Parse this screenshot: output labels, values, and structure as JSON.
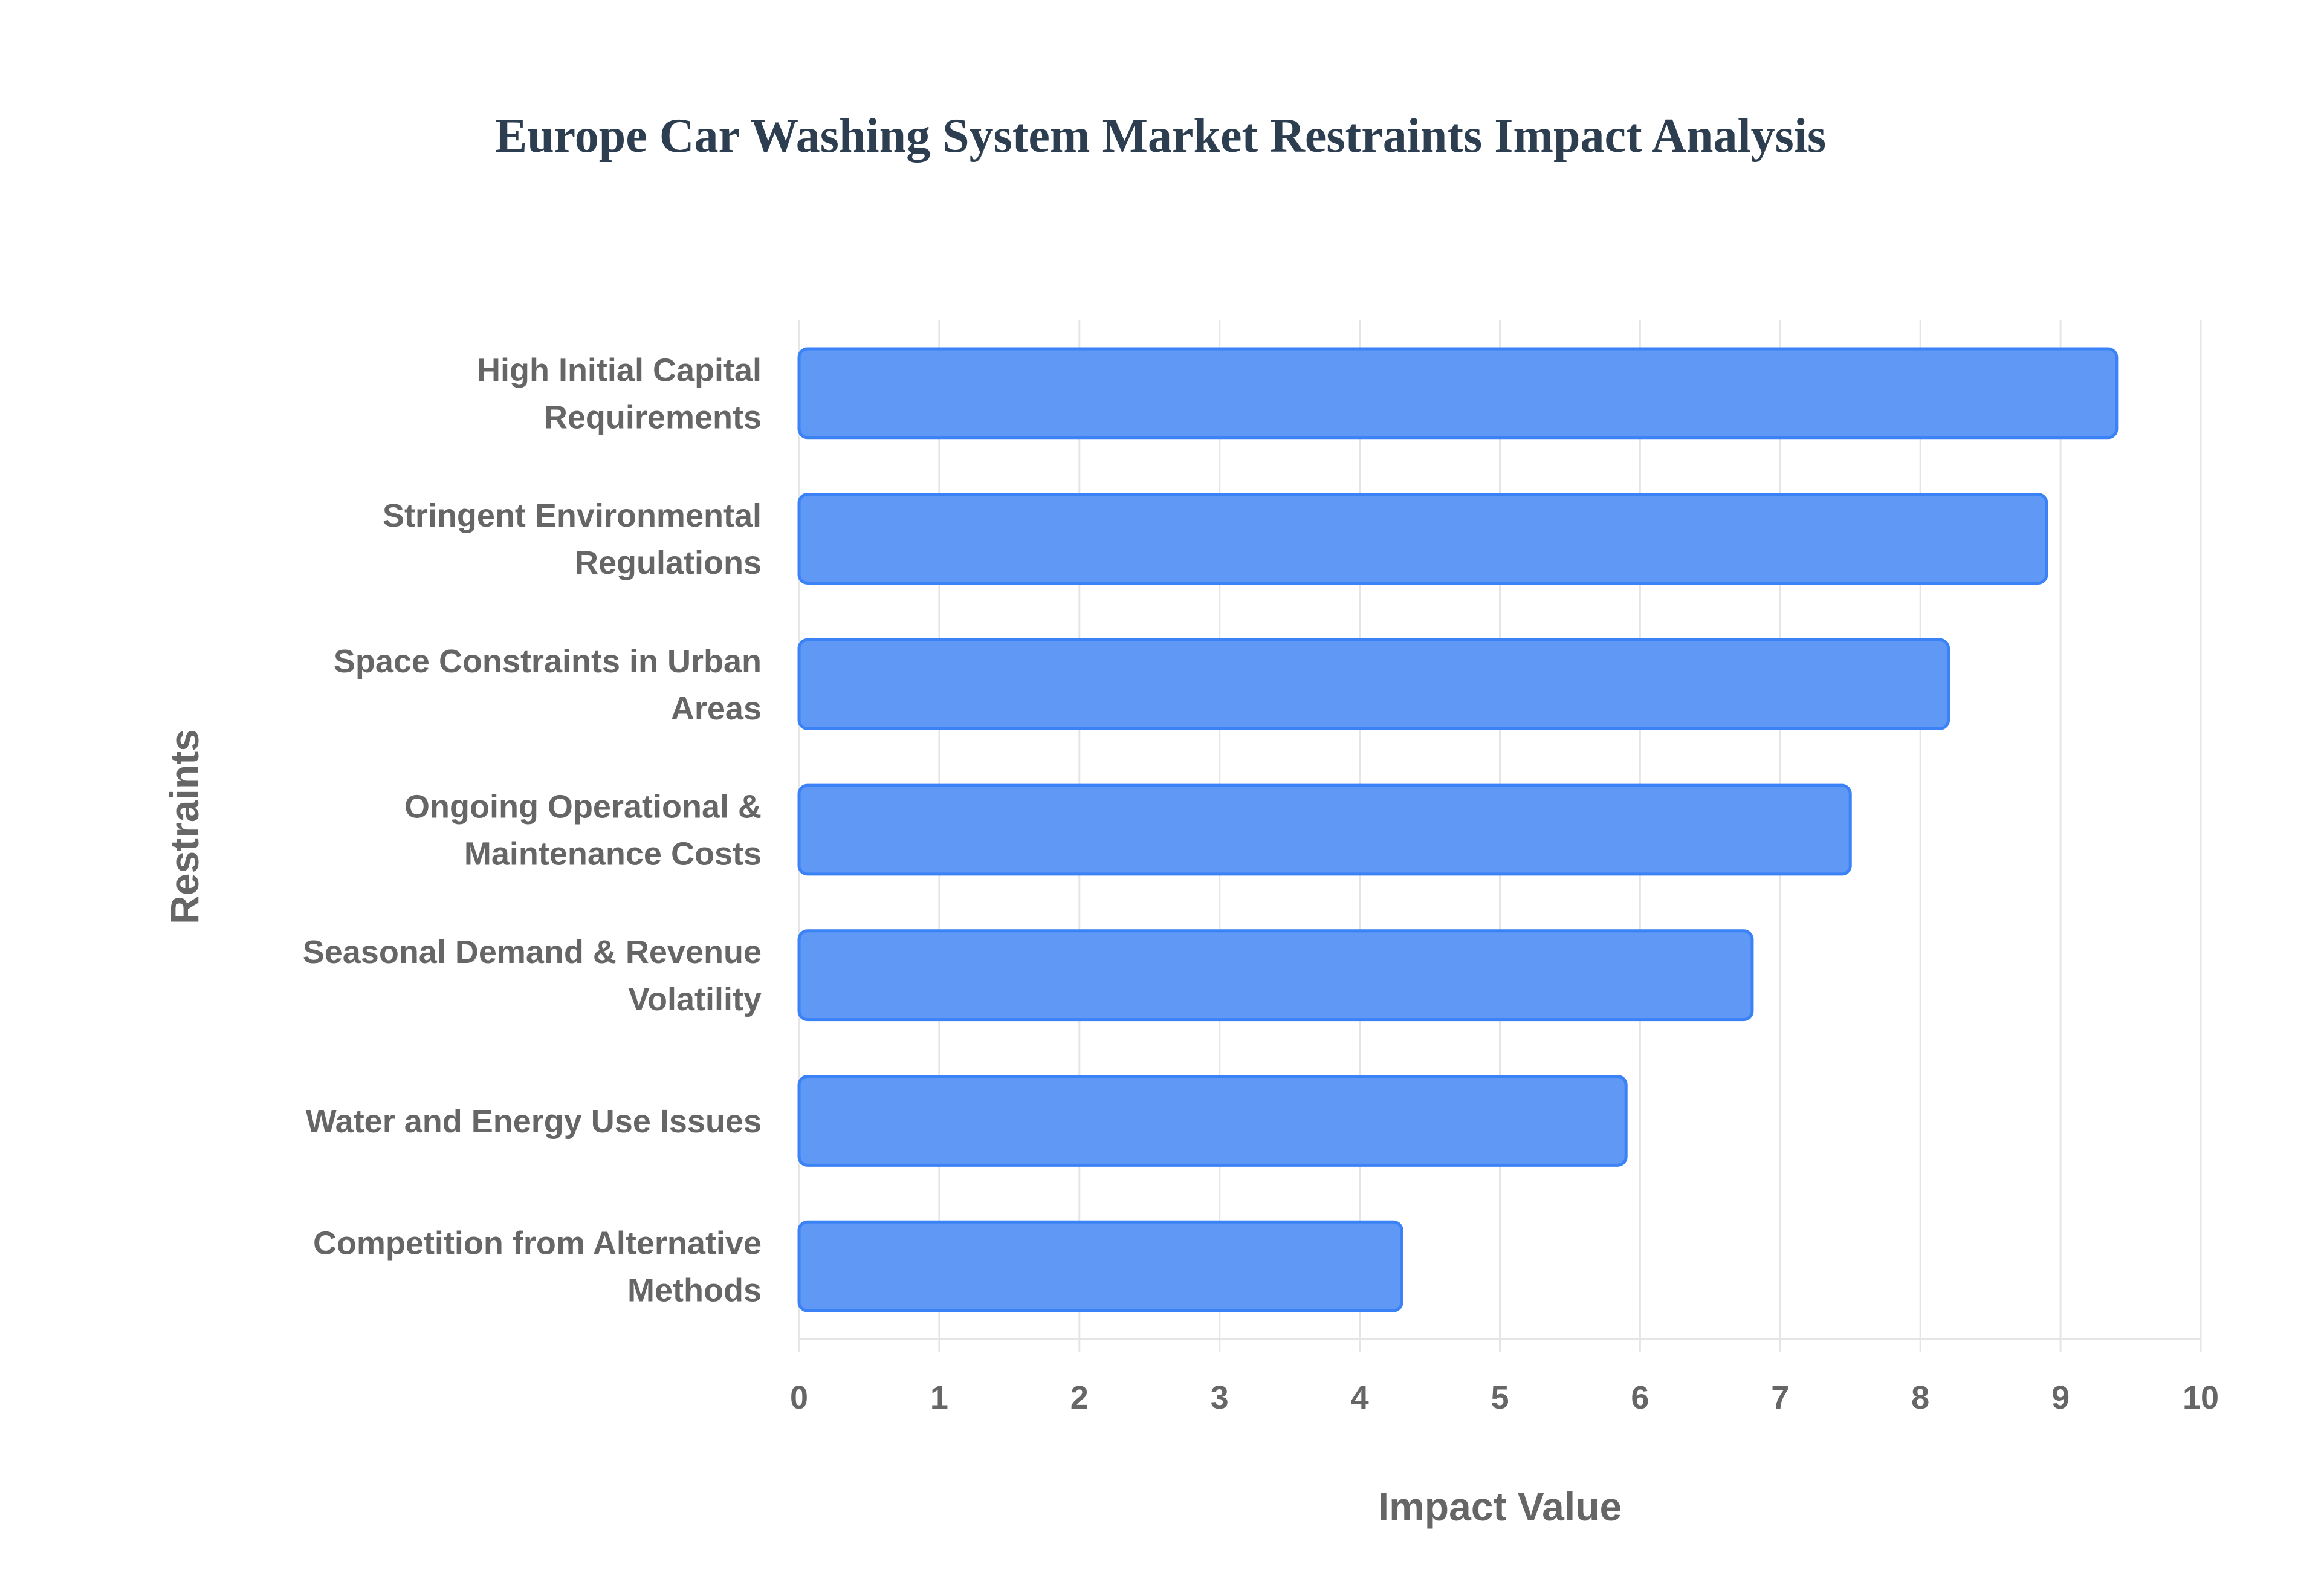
{
  "chart_data": {
    "type": "bar",
    "orientation": "horizontal",
    "title": "Europe Car Washing System Market Restraints Impact Analysis",
    "xlabel": "Impact Value",
    "ylabel": "Restraints",
    "categories": [
      [
        "High Initial Capital",
        "Requirements"
      ],
      [
        "Stringent Environmental",
        "Regulations"
      ],
      [
        "Space Constraints in Urban",
        "Areas"
      ],
      [
        "Ongoing Operational &",
        "Maintenance Costs"
      ],
      [
        "Seasonal Demand & Revenue",
        "Volatility"
      ],
      [
        "Water and Energy Use Issues"
      ],
      [
        "Competition from Alternative",
        "Methods"
      ]
    ],
    "values": [
      9.4,
      8.9,
      8.2,
      7.5,
      6.8,
      5.9,
      4.3
    ],
    "xlim": [
      0,
      10
    ],
    "xticks": [
      "0",
      "1",
      "2",
      "3",
      "4",
      "5",
      "6",
      "7",
      "8",
      "9",
      "10"
    ],
    "grid": true,
    "legend": "none",
    "colors": {
      "bar_fill": "#5f98f5",
      "bar_border": "#3b82f6",
      "title": "#2c3e50",
      "text": "#666666",
      "grid": "#e5e5e5"
    }
  }
}
